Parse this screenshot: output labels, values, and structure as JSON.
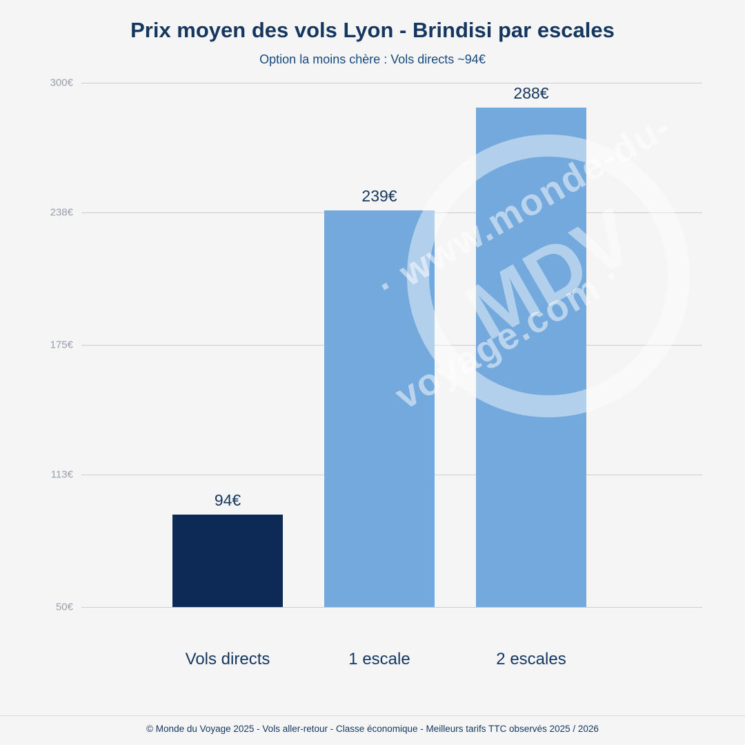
{
  "page": {
    "footer": "© Monde du Voyage 2025 - Vols aller-retour - Classe économique - Meilleurs tarifs TTC observés 2025 / 2026"
  },
  "watermark": {
    "line1": "· www.monde-du-",
    "line2": "voyage.com ·",
    "badge": "MDV"
  },
  "chart_data": {
    "type": "bar",
    "title": "Prix moyen des vols Lyon - Brindisi par escales",
    "subtitle": "Option la moins chère : Vols directs ~94€",
    "categories": [
      "Vols directs",
      "1 escale",
      "2 escales"
    ],
    "values": [
      94,
      239,
      288
    ],
    "value_labels": [
      "94€",
      "239€",
      "288€"
    ],
    "yticks": [
      {
        "value": 300,
        "label": "300€"
      },
      {
        "value": 238,
        "label": "238€"
      },
      {
        "value": 175,
        "label": "175€"
      },
      {
        "value": 113,
        "label": "113€"
      },
      {
        "value": 50,
        "label": "50€"
      }
    ],
    "ylim": [
      50,
      300
    ],
    "grid": true,
    "legend": false,
    "xlabel": "",
    "ylabel": "",
    "bar_colors": [
      "#0d2a57",
      "#74a9dd",
      "#74a9dd"
    ],
    "highlight_index": 0
  },
  "colors": {
    "background": "#f5f5f6",
    "title": "#14365f",
    "subtitle": "#174a7c",
    "grid": "#c9ccd8",
    "tick": "#989ea9",
    "bar_dark": "#0d2a57",
    "bar_light": "#74a9dd"
  }
}
